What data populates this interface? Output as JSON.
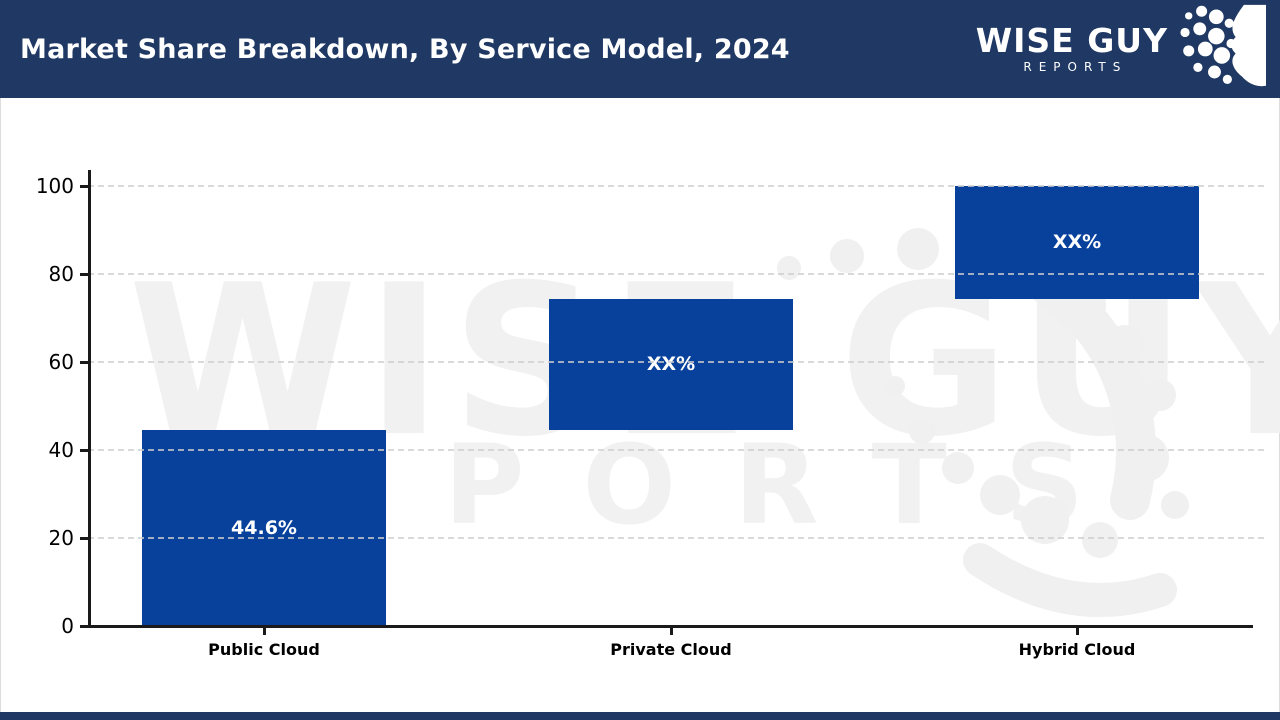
{
  "header": {
    "title": "Market Share Breakdown, By Service Model, 2024",
    "bg_color": "#1f3864",
    "logo": {
      "line1": "WISE GUY",
      "line2": "REPORTS"
    }
  },
  "watermark": {
    "line1": "WISE GUY",
    "line2": "REPORTS"
  },
  "chart_data": {
    "type": "bar",
    "subtype": "waterfall-stacked",
    "title": "Market Share Breakdown, By Service Model, 2024",
    "categories": [
      "Public Cloud",
      "Private Cloud",
      "Hybrid Cloud"
    ],
    "segments": [
      {
        "category": "Public Cloud",
        "from": 0,
        "to": 44.6,
        "label": "44.6%"
      },
      {
        "category": "Private Cloud",
        "from": 44.6,
        "to": 74.4,
        "label": "XX%"
      },
      {
        "category": "Hybrid Cloud",
        "from": 74.4,
        "to": 100,
        "label": "XX%"
      }
    ],
    "values_pct": [
      44.6,
      29.8,
      25.6
    ],
    "bar_labels": [
      "44.6%",
      "XX%",
      "XX%"
    ],
    "xlabel": "",
    "ylabel": "",
    "ylim": [
      0,
      104
    ],
    "yticks": [
      0,
      20,
      40,
      60,
      80,
      100
    ],
    "grid": "horizontal-dashed",
    "legend": "none",
    "bar_color": "#08419c",
    "label_color": "#ffffff",
    "grid_color": "#cecece",
    "axis_color": "#1a1a1a"
  },
  "footer": {
    "bg_color": "#1f3864"
  }
}
